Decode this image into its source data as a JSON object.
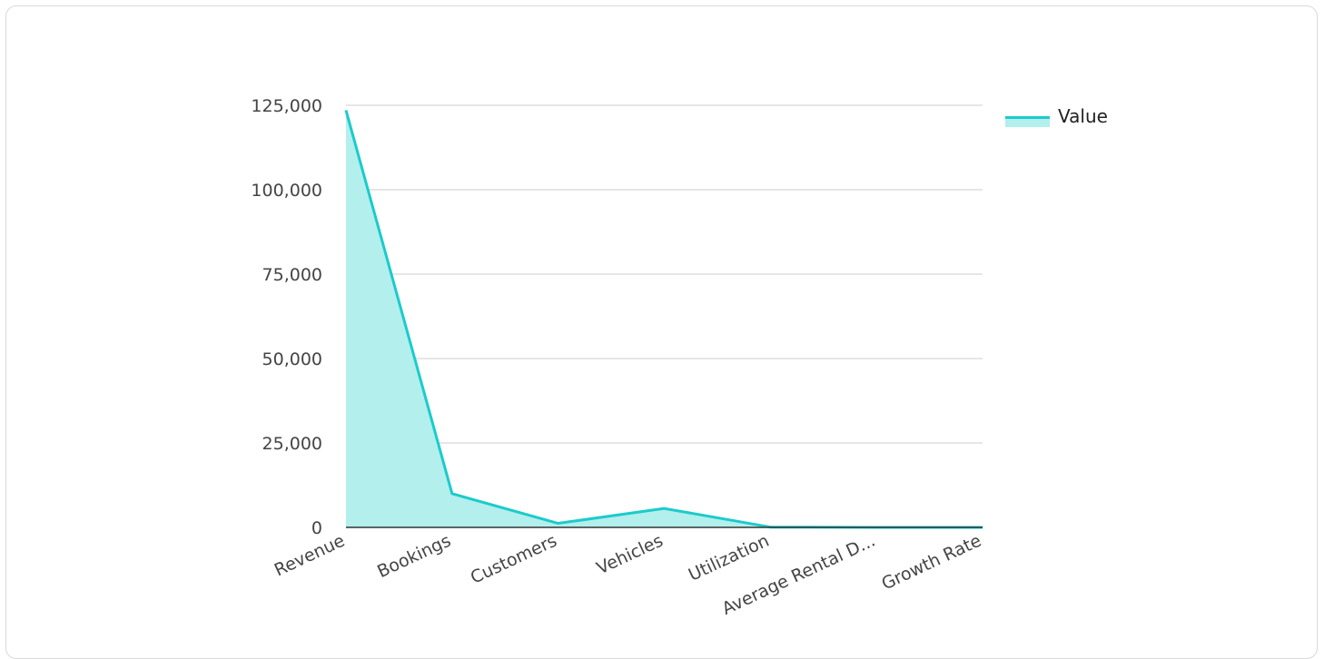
{
  "chart_data": {
    "type": "area",
    "categories": [
      "Revenue",
      "Bookings",
      "Customers",
      "Vehicles",
      "Utilization",
      "Average Rental D...",
      "Growth Rate"
    ],
    "series": [
      {
        "name": "Value",
        "values": [
          123500,
          10000,
          1200,
          5600,
          78,
          4.2,
          12
        ],
        "color": "#1ccbcb",
        "fill": "#b2efed"
      }
    ],
    "ylim": [
      0,
      125000
    ],
    "yticks": [
      0,
      25000,
      50000,
      75000,
      100000,
      125000
    ],
    "ytick_labels": [
      "0",
      "25,000",
      "50,000",
      "75,000",
      "100,000",
      "125,000"
    ],
    "grid": true,
    "legend_position": "top-right",
    "title": "",
    "xlabel": "",
    "ylabel": ""
  }
}
